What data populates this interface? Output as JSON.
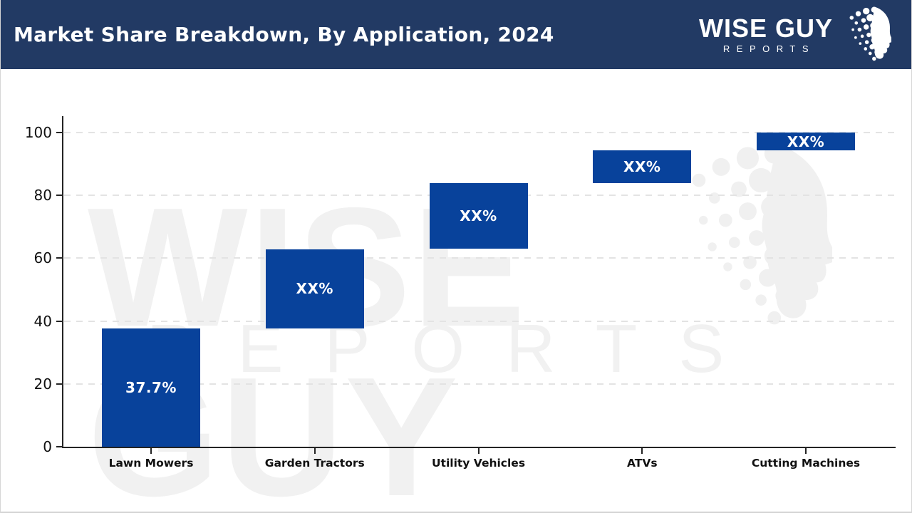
{
  "header": {
    "title": "Market Share Breakdown, By Application, 2024",
    "brand": {
      "line1": "WISE GUY",
      "line2": "REPORTS"
    }
  },
  "watermark": {
    "line1": "WISE GUY",
    "line2": "REPORTS"
  },
  "chart_data": {
    "type": "bar",
    "subtype": "waterfall",
    "title": "Market Share Breakdown, By Application, 2024",
    "categories": [
      "Lawn Mowers",
      "Garden Tractors",
      "Utility Vehicles",
      "ATVs",
      "Cutting Machines"
    ],
    "segments": [
      {
        "category": "Lawn Mowers",
        "start": 0,
        "end": 37.7,
        "label": "37.7%"
      },
      {
        "category": "Garden Tractors",
        "start": 37.7,
        "end": 62.8,
        "label": "XX%"
      },
      {
        "category": "Utility Vehicles",
        "start": 63,
        "end": 84,
        "label": "XX%"
      },
      {
        "category": "ATVs",
        "start": 84,
        "end": 94.3,
        "label": "XX%"
      },
      {
        "category": "Cutting Machines",
        "start": 94.3,
        "end": 100,
        "label": "XX%"
      }
    ],
    "yticks": [
      0,
      20,
      40,
      60,
      80,
      100
    ],
    "ylim": [
      0,
      105
    ],
    "xlabel": "",
    "ylabel": "",
    "grid": "horizontal-dashed",
    "legend": "none",
    "bar_color": "#08429B",
    "bar_label_color": "#ffffff",
    "axis_color": "#242424",
    "header_bg": "#223A64",
    "gridline_color": "#e3e3e3"
  }
}
